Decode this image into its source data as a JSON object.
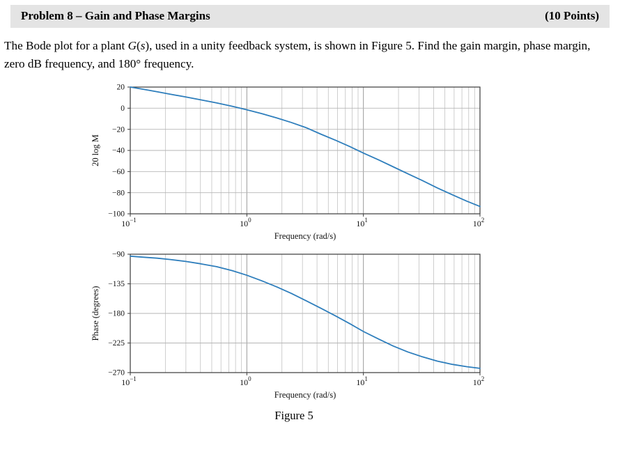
{
  "header": {
    "title": "Problem 8 – Gain and Phase Margins",
    "points": "(10 Points)"
  },
  "problem_text": {
    "segments": [
      {
        "text": "The Bode plot for a plant ",
        "italic": false
      },
      {
        "text": "G",
        "italic": true
      },
      {
        "text": "(",
        "italic": false
      },
      {
        "text": "s",
        "italic": true
      },
      {
        "text": "), used in a unity feedback system, is shown in Figure 5. Find the gain margin, phase margin, zero dB frequency, and 180° frequency.",
        "italic": false
      }
    ]
  },
  "figure": {
    "caption": "Figure 5"
  },
  "chart_data": [
    {
      "type": "line",
      "title": "",
      "xlabel": "Frequency (rad/s)",
      "ylabel": "20 log M",
      "xscale": "log",
      "xlim": [
        0.1,
        100
      ],
      "ylim": [
        -100,
        20
      ],
      "yticks": [
        20,
        0,
        -20,
        -40,
        -60,
        -80,
        -100
      ],
      "xticks": [
        0.1,
        1,
        10,
        100
      ],
      "grid": true,
      "line_color": "#2E7EBC",
      "series": [
        {
          "name": "magnitude",
          "x": [
            0.1,
            0.13,
            0.17,
            0.22,
            0.3,
            0.4,
            0.55,
            0.75,
            1,
            1.35,
            1.8,
            2.4,
            3.2,
            4.3,
            5.8,
            7.7,
            10,
            13.5,
            18,
            24,
            32,
            43,
            58,
            77,
            100
          ],
          "y": [
            20,
            17.8,
            15.5,
            13.3,
            10.6,
            8,
            5,
            1.8,
            -1.5,
            -5.2,
            -9.2,
            -13.5,
            -18.3,
            -24.5,
            -30.5,
            -36.5,
            -42.5,
            -49,
            -55.5,
            -62,
            -68.5,
            -75.5,
            -82,
            -88,
            -93
          ]
        }
      ]
    },
    {
      "type": "line",
      "title": "",
      "xlabel": "Frequency (rad/s)",
      "ylabel": "Phase (degrees)",
      "xscale": "log",
      "xlim": [
        0.1,
        100
      ],
      "ylim": [
        -270,
        -90
      ],
      "yticks": [
        -90,
        -135,
        -180,
        -225,
        -270
      ],
      "xticks": [
        0.1,
        1,
        10,
        100
      ],
      "grid": true,
      "line_color": "#2E7EBC",
      "series": [
        {
          "name": "phase",
          "x": [
            0.1,
            0.13,
            0.17,
            0.22,
            0.3,
            0.4,
            0.55,
            0.75,
            1,
            1.35,
            1.8,
            2.4,
            3.2,
            4.3,
            5.8,
            7.7,
            10,
            13.5,
            18,
            24,
            32,
            43,
            58,
            77,
            100
          ],
          "y": [
            -93,
            -94.5,
            -96,
            -98,
            -101,
            -104.5,
            -109,
            -115,
            -122,
            -130.5,
            -139.5,
            -149.5,
            -160.5,
            -172,
            -184,
            -196,
            -207.5,
            -219,
            -229.5,
            -238.5,
            -246,
            -252.5,
            -257.5,
            -261,
            -263.5
          ]
        }
      ]
    }
  ]
}
